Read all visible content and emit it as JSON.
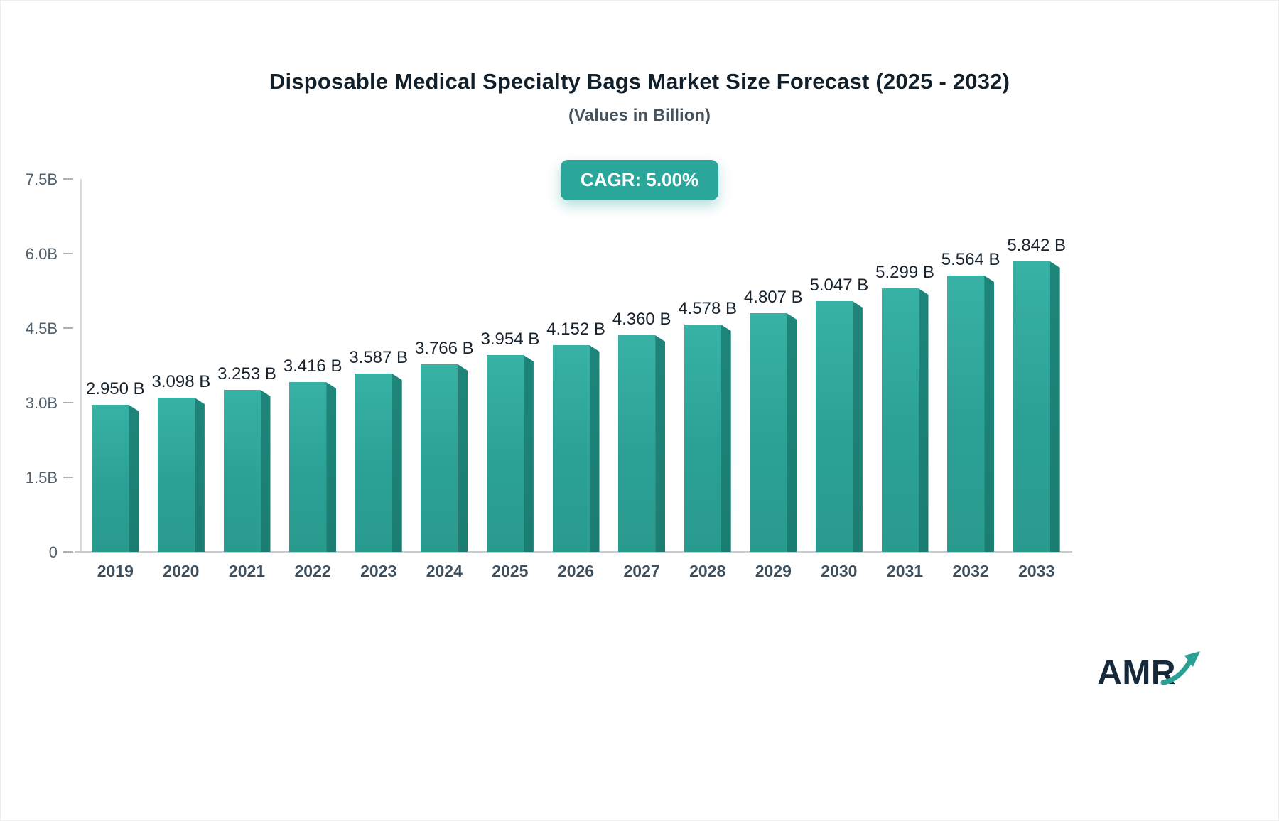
{
  "header": {
    "title": "Disposable Medical Specialty Bags Market Size Forecast (2025 - 2032)",
    "subtitle": "(Values in Billion)",
    "cagr_label": "CAGR: 5.00%"
  },
  "chart_data": {
    "type": "bar",
    "title": "Disposable Medical Specialty Bags Market Size Forecast (2025 - 2032)",
    "subtitle": "(Values in Billion)",
    "cagr": "5.00%",
    "categories": [
      "2019",
      "2020",
      "2021",
      "2022",
      "2023",
      "2024",
      "2025",
      "2026",
      "2027",
      "2028",
      "2029",
      "2030",
      "2031",
      "2032",
      "2033"
    ],
    "values": [
      2.95,
      3.098,
      3.253,
      3.416,
      3.587,
      3.766,
      3.954,
      4.152,
      4.36,
      4.578,
      4.807,
      5.047,
      5.299,
      5.564,
      5.842
    ],
    "value_labels": [
      "2.950 B",
      "3.098 B",
      "3.253 B",
      "3.416 B",
      "3.587 B",
      "3.766 B",
      "3.954 B",
      "4.152 B",
      "4.360 B",
      "4.578 B",
      "4.807 B",
      "5.047 B",
      "5.299 B",
      "5.564 B",
      "5.842 B"
    ],
    "y_ticks": [
      {
        "label": "7.5B",
        "value": 7.5
      },
      {
        "label": "6.0B",
        "value": 6.0
      },
      {
        "label": "4.5B",
        "value": 4.5
      },
      {
        "label": "3.0B",
        "value": 3.0
      },
      {
        "label": "1.5B",
        "value": 1.5
      },
      {
        "label": "0",
        "value": 0
      }
    ],
    "ylim": [
      0,
      7.5
    ],
    "xlabel": "",
    "ylabel": "",
    "grid": false,
    "legend": false,
    "bar_color": "#2ea99b",
    "bar_side_color": "#1b8074",
    "badge_color": "#2aa79a"
  },
  "footer": {
    "logo_text": "AMR"
  }
}
